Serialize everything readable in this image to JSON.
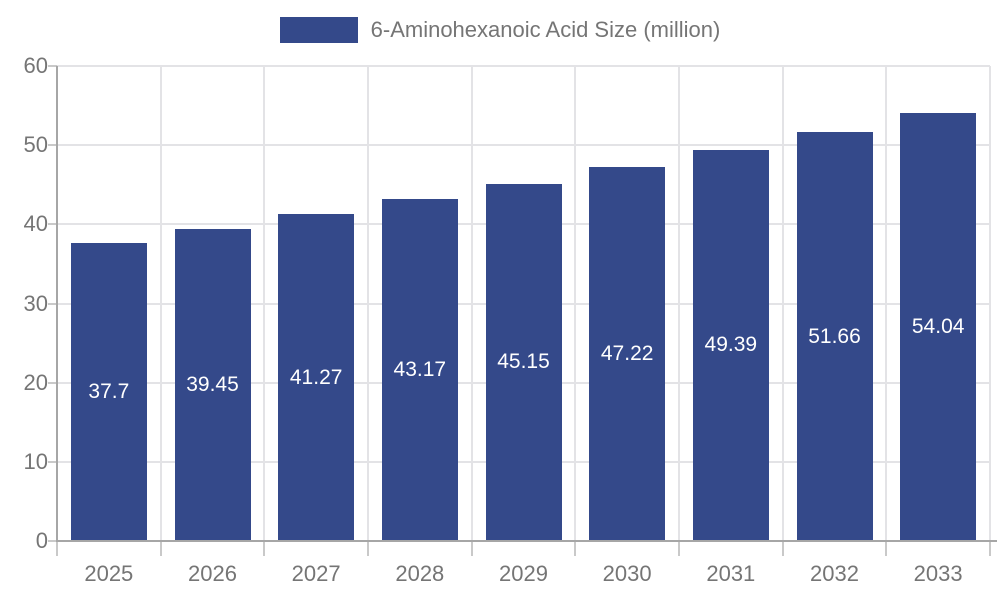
{
  "chart_data": {
    "type": "bar",
    "title": "6-Aminohexanoic Acid Size (million)",
    "legend": [
      "6-Aminohexanoic Acid Size (million)"
    ],
    "legend_position": "top-center",
    "categories": [
      "2025",
      "2026",
      "2027",
      "2028",
      "2029",
      "2030",
      "2031",
      "2032",
      "2033"
    ],
    "values": [
      37.7,
      39.45,
      41.27,
      43.17,
      45.15,
      47.22,
      49.39,
      51.66,
      54.04
    ],
    "value_labels": [
      "37.7",
      "39.45",
      "41.27",
      "43.17",
      "45.15",
      "47.22",
      "49.39",
      "51.66",
      "54.04"
    ],
    "xlabel": "",
    "ylabel": "",
    "ylim": [
      0,
      60
    ],
    "yticks": [
      0,
      10,
      20,
      30,
      40,
      50,
      60
    ],
    "grid": true,
    "colors": {
      "bar": "#34498A",
      "value_label_text": "#FFFFFF",
      "axis_text": "#757575",
      "legend_text": "#757575",
      "gridline": "#E3E3E6",
      "axis_line": "#A6A6A6",
      "tick_mark": "#C9C9C9",
      "background": "#FFFFFF"
    }
  }
}
